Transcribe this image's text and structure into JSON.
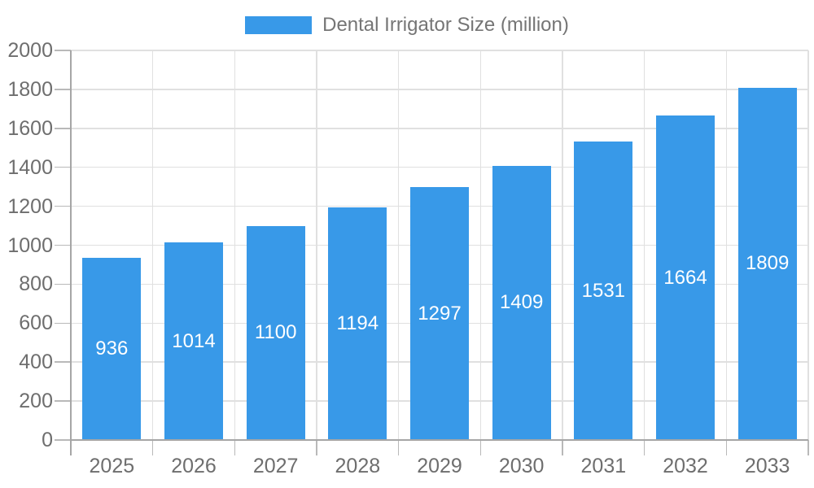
{
  "legend": {
    "items": [
      {
        "label": "Dental Irrigator Size (million)",
        "color": "#3899e8"
      }
    ]
  },
  "chart_data": {
    "type": "bar",
    "title": "",
    "categories": [
      "2025",
      "2026",
      "2027",
      "2028",
      "2029",
      "2030",
      "2031",
      "2032",
      "2033"
    ],
    "series": [
      {
        "name": "Dental Irrigator Size (million)",
        "values": [
          936,
          1014,
          1100,
          1194,
          1297,
          1409,
          1531,
          1664,
          1809
        ]
      }
    ],
    "xlabel": "",
    "ylabel": "",
    "ylim": [
      0,
      2000
    ],
    "yticks": [
      0,
      200,
      400,
      600,
      800,
      1000,
      1200,
      1400,
      1600,
      1800,
      2000
    ],
    "grid": true,
    "legend_position": "top",
    "value_labels_position": "inside-center"
  },
  "style": {
    "bar_color": "#3899e8",
    "value_label_color": "#ffffff",
    "axis_line_color": "#a6a6a6",
    "tick_mark_color": "#b9b9b9",
    "grid_line_color": "#e0e0e0",
    "axis_text_color": "#6e6e6e",
    "legend_text_color": "#757575",
    "background_color": "#ffffff"
  }
}
